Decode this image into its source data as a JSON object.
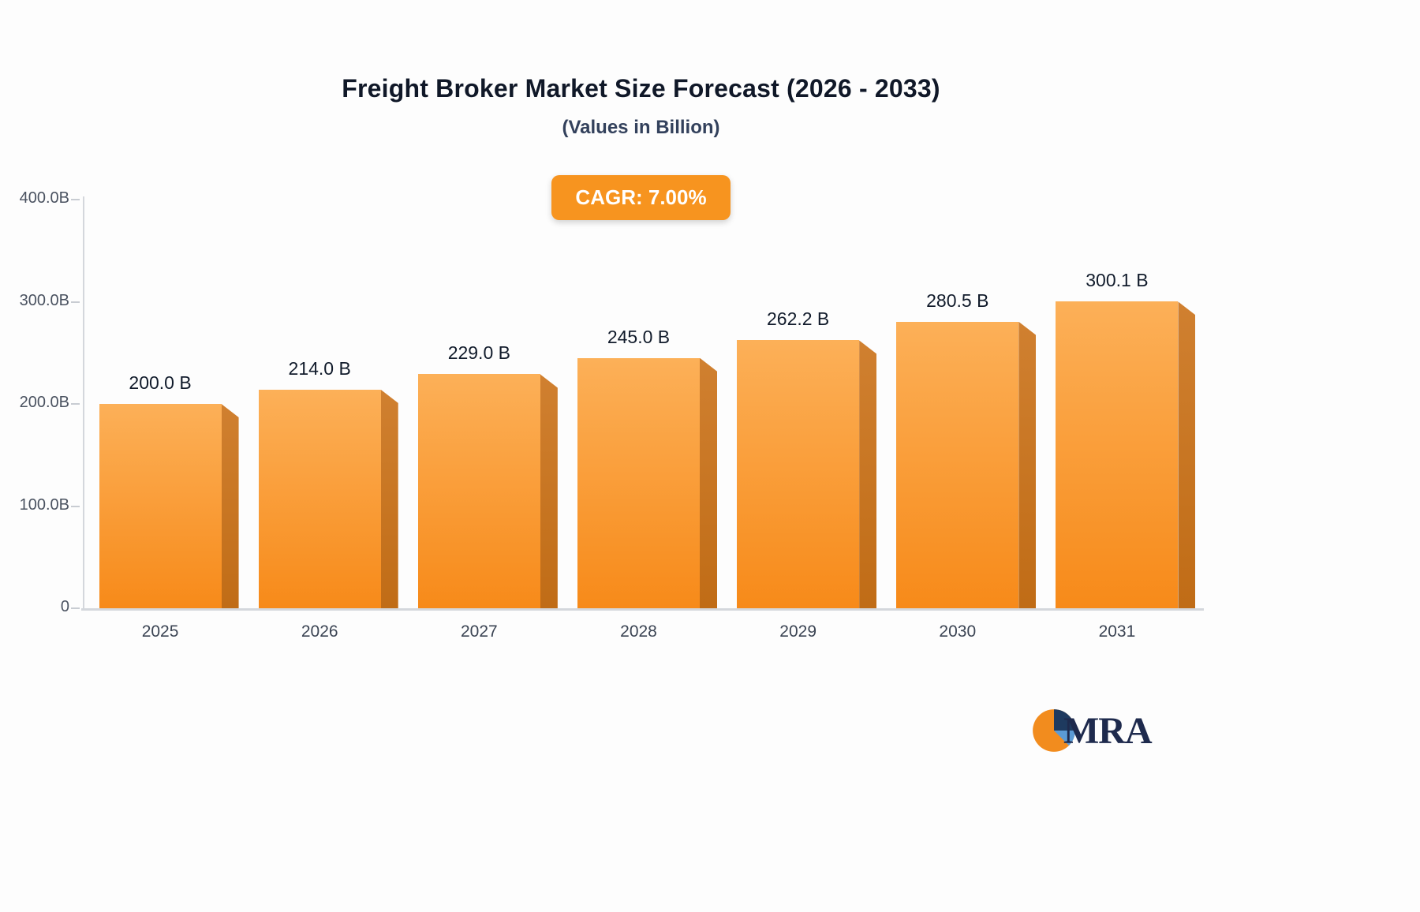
{
  "header": {
    "title": "Freight Broker Market Size Forecast (2026 - 2033)",
    "subtitle": "(Values in Billion)"
  },
  "badge": {
    "label": "CAGR: 7.00%",
    "bg": "#f7941f",
    "text_color": "#ffffff"
  },
  "chart_data": {
    "type": "bar",
    "title": "Freight Broker Market Size Forecast (2026 - 2033)",
    "subtitle": "(Values in Billion)",
    "xlabel": "",
    "ylabel": "",
    "categories": [
      "2025",
      "2026",
      "2027",
      "2028",
      "2029",
      "2030",
      "2031"
    ],
    "values": [
      200.0,
      214.0,
      229.0,
      245.0,
      262.2,
      280.5,
      300.1
    ],
    "value_labels": [
      "200.0 B",
      "214.0 B",
      "229.0 B",
      "245.0 B",
      "262.2 B",
      "280.5 B",
      "300.1 B"
    ],
    "ylim": [
      0,
      400
    ],
    "yticks": [
      {
        "value": 400,
        "label": "400.0B"
      },
      {
        "value": 300,
        "label": "300.0B"
      },
      {
        "value": 200,
        "label": "200.0B"
      },
      {
        "value": 100,
        "label": "100.0B"
      },
      {
        "value": 0,
        "label": "0"
      }
    ],
    "grid": false,
    "legend": "none",
    "bar_colors": {
      "front_top": "#fcb058",
      "front_bottom": "#f78a19",
      "side_top": "#d08030",
      "side_bottom": "#c06c16"
    },
    "axis_color": "#d4d7dc"
  },
  "logo": {
    "text": "MRA",
    "mark_colors": {
      "orange": "#f28c1e",
      "navy": "#1e3a5f",
      "blue": "#5b9bd5"
    }
  }
}
